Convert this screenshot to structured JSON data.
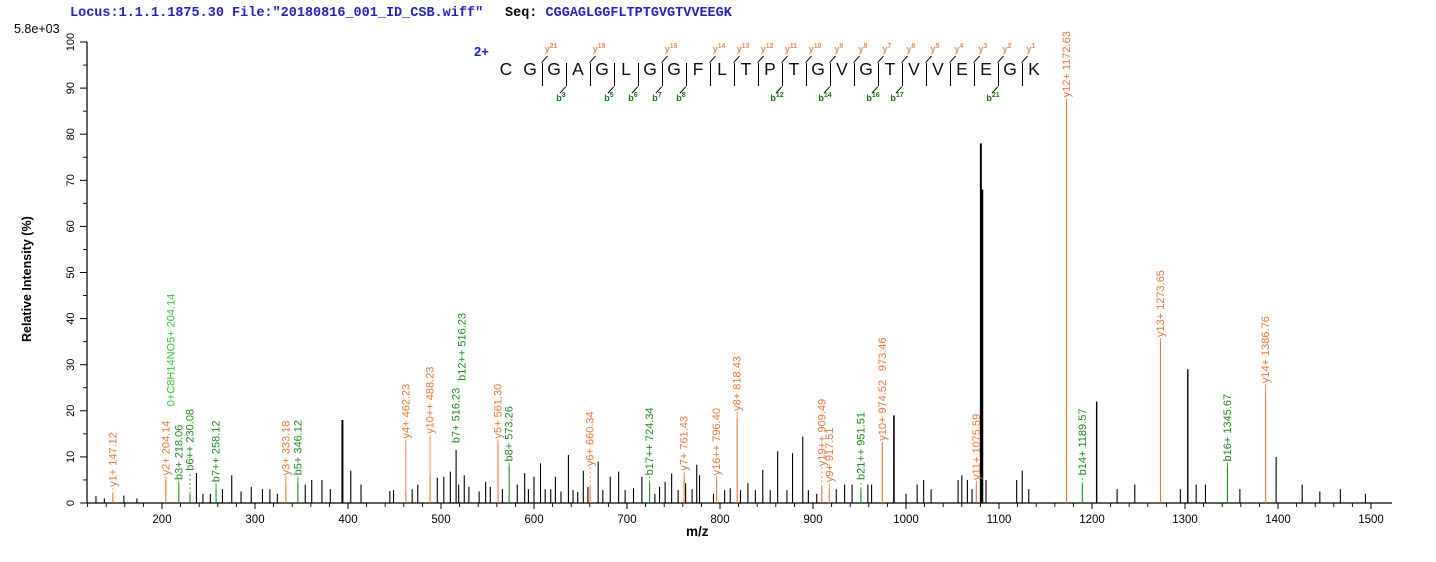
{
  "header": {
    "locus_file": "Locus:1.1.1.1875.30 File:\"20180816_001_ID_CSB.wiff\"",
    "seq_label": "Seq: ",
    "sequence": "CGGAGLGGFLTPTGVGTVVEEGK",
    "max_intensity": "5.8e+03"
  },
  "sequence_panel": {
    "charge": "2+",
    "residues": [
      "C",
      "G",
      "G",
      "A",
      "G",
      "L",
      "G",
      "G",
      "F",
      "L",
      "T",
      "P",
      "T",
      "G",
      "V",
      "G",
      "T",
      "V",
      "V",
      "E",
      "E",
      "G",
      "K"
    ],
    "cleavages": [
      {
        "after": 2,
        "y": "y21"
      },
      {
        "after": 3,
        "b": "b3"
      },
      {
        "after": 4,
        "y": "y19"
      },
      {
        "after": 5,
        "b": "b5"
      },
      {
        "after": 6,
        "b": "b6"
      },
      {
        "after": 7,
        "y": "y16",
        "b": "b7"
      },
      {
        "after": 8,
        "b": "b8"
      },
      {
        "after": 9,
        "y": "y14"
      },
      {
        "after": 10,
        "y": "y13"
      },
      {
        "after": 11,
        "y": "y12"
      },
      {
        "after": 12,
        "y": "y11",
        "b": "b12"
      },
      {
        "after": 13,
        "y": "y10"
      },
      {
        "after": 14,
        "y": "y9",
        "b": "b14"
      },
      {
        "after": 15,
        "y": "y8"
      },
      {
        "after": 16,
        "y": "y7",
        "b": "b16"
      },
      {
        "after": 17,
        "y": "y6",
        "b": "b17"
      },
      {
        "after": 18,
        "y": "y5"
      },
      {
        "after": 19,
        "y": "y4"
      },
      {
        "after": 20,
        "y": "y3"
      },
      {
        "after": 21,
        "y": "y2",
        "b": "b21"
      },
      {
        "after": 22,
        "y": "y1"
      }
    ]
  },
  "axes": {
    "xlabel": "m/z",
    "ylabel": "Relative Intensity (%)",
    "x_ticks": [
      200,
      300,
      400,
      500,
      600,
      700,
      800,
      900,
      1000,
      1100,
      1200,
      1300,
      1400,
      1500
    ],
    "y_ticks": [
      0,
      10,
      20,
      30,
      40,
      50,
      60,
      70,
      80,
      90,
      100
    ]
  },
  "colors": {
    "header_blue": "#2323c0",
    "y_ion": "#e8763a",
    "y_ion_tag": "#f08b5e",
    "b_ion": "#1e8b1e",
    "b_ion_tag": "#187818",
    "neutral_green": "#3cc43c",
    "peak_black": "#000000"
  },
  "chart_data": {
    "type": "bar",
    "description": "MS/MS fragment-ion mass spectrum of peptide CGGAGLGGFLTPTGVGTVVEEGK (2+)",
    "title": "",
    "xlabel": "m/z",
    "ylabel": "Relative Intensity (%)",
    "xlim": [
      119,
      1517
    ],
    "ylim": [
      0,
      100
    ],
    "grid": false,
    "max_intensity_counts": "5.8e+03",
    "annotated_peaks": [
      {
        "mz": 147.12,
        "pct": 2,
        "label": "y1+ 147.12",
        "ion": "y",
        "lp": 3.5,
        "dash": 1
      },
      {
        "mz": 204.14,
        "pct": 5,
        "label": "y2+ 204.14",
        "ion": "y",
        "lp": 6
      },
      {
        "mz": 204.14,
        "pct": 0,
        "label": "0+C8H14NO5+ 204.14",
        "ion": "n",
        "lp": 21,
        "dx": 5,
        "noline": 1
      },
      {
        "mz": 218.06,
        "pct": 4,
        "label": "b3+ 218.06",
        "ion": "b",
        "lp": 5
      },
      {
        "mz": 230.08,
        "pct": 2,
        "label": "b6++ 230.08",
        "ion": "b",
        "lp": 7,
        "dash": 1
      },
      {
        "mz": 258.12,
        "pct": 3,
        "label": "b7++ 258.12",
        "ion": "b",
        "lp": 4.5
      },
      {
        "mz": 333.18,
        "pct": 4.5,
        "label": "y3+ 333.18",
        "ion": "y",
        "lp": 6
      },
      {
        "mz": 346.12,
        "pct": 4.5,
        "label": "b5+ 346.12",
        "ion": "b",
        "lp": 6
      },
      {
        "mz": 462.23,
        "pct": 2.5,
        "label": "y4+ 462.23",
        "ion": "y",
        "lp": 14
      },
      {
        "mz": 488.23,
        "pct": 6,
        "label": "y10++ 488.23",
        "ion": "y",
        "lp": 15
      },
      {
        "mz": 516.23,
        "pct": 11.5,
        "label": "b7+ 516.23",
        "ion": "b",
        "lp": 13,
        "noline": 1
      },
      {
        "mz": 516.23,
        "pct": 0,
        "label": "b12++ 516.23",
        "ion": "b",
        "lp": 26.5,
        "dx": 6,
        "noline": 1
      },
      {
        "mz": 561.3,
        "pct": 13,
        "label": "y5+ 561.30",
        "ion": "y",
        "lp": 14
      },
      {
        "mz": 573.26,
        "pct": 8,
        "label": "b8+ 573.26",
        "ion": "b",
        "lp": 9
      },
      {
        "mz": 660.34,
        "pct": 3.5,
        "label": "y6+ 660.34",
        "ion": "y",
        "lp": 8,
        "dash": 1
      },
      {
        "mz": 724.34,
        "pct": 4.5,
        "label": "b17++ 724.34",
        "ion": "b",
        "lp": 6,
        "dash": 1
      },
      {
        "mz": 761.43,
        "pct": 6,
        "label": "y7+ 761.43",
        "ion": "y",
        "lp": 7
      },
      {
        "mz": 796.4,
        "pct": 5,
        "label": "y16++ 796.40",
        "ion": "y",
        "lp": 6
      },
      {
        "mz": 818.43,
        "pct": 18.5,
        "label": "y8+ 818.43",
        "ion": "y",
        "lp": 20
      },
      {
        "mz": 909.49,
        "pct": 3.5,
        "label": "y19++ 909.49",
        "ion": "y",
        "lp": 8,
        "dash": 1
      },
      {
        "mz": 917.51,
        "pct": 3,
        "label": "y9+ 917.51",
        "ion": "y",
        "lp": 4.5
      },
      {
        "mz": 951.51,
        "pct": 3,
        "label": "b21++ 951.51",
        "ion": "b",
        "lp": 5,
        "dash": 1
      },
      {
        "mz": 974.52,
        "pct": 13,
        "label": "y10+ 974.52",
        "ion": "y",
        "lp": 13.5
      },
      {
        "mz": 974.52,
        "pct": 0,
        "label": "973.46",
        "ion": "y",
        "lp": 28.6,
        "noline": 1
      },
      {
        "mz": 1075.59,
        "pct": 4,
        "label": "y11+ 1075.59",
        "ion": "y",
        "lp": 5
      },
      {
        "mz": 1172.63,
        "pct": 87,
        "label": "y12+ 1172.63",
        "ion": "y",
        "lp": 88
      },
      {
        "mz": 1189.57,
        "pct": 4,
        "label": "b14+ 1189.57",
        "ion": "b",
        "lp": 6,
        "dash": 1
      },
      {
        "mz": 1273.65,
        "pct": 35,
        "label": "y13+ 1273.65",
        "ion": "y",
        "lp": 36
      },
      {
        "mz": 1345.67,
        "pct": 7.5,
        "label": "b16+ 1345.67",
        "ion": "b",
        "lp": 9
      },
      {
        "mz": 1386.76,
        "pct": 24,
        "label": "y14+ 1386.76",
        "ion": "y",
        "lp": 26
      }
    ],
    "peaks": [
      [
        129,
        1.5
      ],
      [
        138,
        1
      ],
      [
        159,
        1.6
      ],
      [
        173,
        1
      ],
      [
        237,
        6.5
      ],
      [
        244,
        2
      ],
      [
        252,
        2
      ],
      [
        265,
        3
      ],
      [
        275,
        6
      ],
      [
        285,
        2.5
      ],
      [
        296,
        3.5
      ],
      [
        308,
        3
      ],
      [
        316,
        3
      ],
      [
        324,
        2
      ],
      [
        354,
        4
      ],
      [
        361,
        5
      ],
      [
        372,
        5
      ],
      [
        381,
        3
      ],
      [
        394,
        18,
        2
      ],
      [
        403,
        7
      ],
      [
        414,
        4
      ],
      [
        445,
        2.6
      ],
      [
        449,
        2.8
      ],
      [
        469,
        3
      ],
      [
        475,
        4
      ],
      [
        496,
        5.5
      ],
      [
        503,
        5.7
      ],
      [
        510,
        6.8
      ],
      [
        516.23,
        11.5
      ],
      [
        519,
        4
      ],
      [
        525,
        6
      ],
      [
        530,
        3.5
      ],
      [
        541,
        2.5
      ],
      [
        548,
        4.6
      ],
      [
        553,
        3.5
      ],
      [
        566,
        3
      ],
      [
        582,
        4
      ],
      [
        590,
        6.5
      ],
      [
        594,
        3
      ],
      [
        600,
        5.7
      ],
      [
        607,
        8.6
      ],
      [
        612,
        3
      ],
      [
        618,
        3
      ],
      [
        623,
        5.7
      ],
      [
        629,
        2.5
      ],
      [
        637,
        10.4
      ],
      [
        642,
        2.8
      ],
      [
        647,
        2.4
      ],
      [
        653,
        7
      ],
      [
        658,
        3.5
      ],
      [
        669,
        9
      ],
      [
        674,
        2.8
      ],
      [
        682,
        5.7
      ],
      [
        691,
        6.8
      ],
      [
        698,
        2.8
      ],
      [
        707,
        3.2
      ],
      [
        716,
        5.7
      ],
      [
        730,
        2
      ],
      [
        735,
        3.5
      ],
      [
        741,
        4.6
      ],
      [
        748,
        6.4
      ],
      [
        755,
        2.8
      ],
      [
        763,
        4.3
      ],
      [
        770,
        3
      ],
      [
        775,
        8.3
      ],
      [
        778,
        6
      ],
      [
        793,
        2
      ],
      [
        805,
        2.8
      ],
      [
        811,
        3.2
      ],
      [
        822,
        2.8
      ],
      [
        830,
        4.3
      ],
      [
        838,
        2.8
      ],
      [
        846,
        7.2
      ],
      [
        854,
        2.8
      ],
      [
        862,
        11.2
      ],
      [
        872,
        2.8
      ],
      [
        878,
        10.8
      ],
      [
        889,
        14.4
      ],
      [
        895,
        2.8
      ],
      [
        904,
        2
      ],
      [
        925,
        3
      ],
      [
        934,
        4
      ],
      [
        942,
        4
      ],
      [
        959,
        4
      ],
      [
        963,
        4
      ],
      [
        987,
        19,
        1.6
      ],
      [
        1000,
        2
      ],
      [
        1012,
        4
      ],
      [
        1019,
        5
      ],
      [
        1027,
        3
      ],
      [
        1056,
        5
      ],
      [
        1060,
        6
      ],
      [
        1066,
        5
      ],
      [
        1071,
        3
      ],
      [
        1080.5,
        78,
        2
      ],
      [
        1082,
        68,
        2
      ],
      [
        1086,
        5
      ],
      [
        1119,
        5
      ],
      [
        1125,
        7
      ],
      [
        1132,
        3
      ],
      [
        1205,
        22,
        1.4
      ],
      [
        1227,
        3
      ],
      [
        1246,
        4
      ],
      [
        1295,
        3
      ],
      [
        1303,
        29,
        1.4
      ],
      [
        1312,
        4
      ],
      [
        1322,
        4
      ],
      [
        1359,
        3
      ],
      [
        1398,
        10
      ],
      [
        1426,
        4
      ],
      [
        1445,
        2.5
      ],
      [
        1467,
        3
      ],
      [
        1494,
        2
      ]
    ]
  }
}
